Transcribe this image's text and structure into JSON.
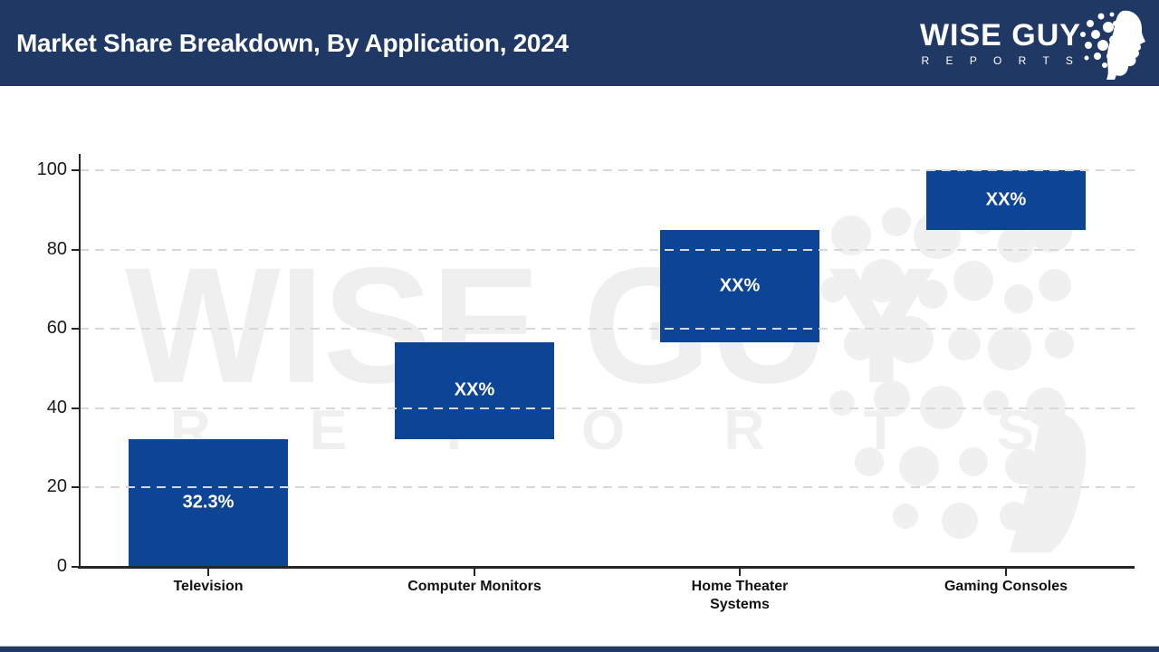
{
  "header": {
    "title": "Market Share Breakdown, By Application, 2024",
    "bg_color": "#1f3864"
  },
  "logo": {
    "name_line": "WISE GUY",
    "reports_line": "R E P O R T S"
  },
  "watermark": {
    "name_line": "WISE GUY",
    "reports_line": "R E P O R T S"
  },
  "footer": {
    "bg_color": "#1f3864"
  },
  "chart_data": {
    "type": "bar",
    "variant": "waterfall",
    "title": "Market Share Breakdown, By Application, 2024",
    "xlabel": "",
    "ylabel": "",
    "ylim": [
      0,
      100
    ],
    "yticks": [
      0,
      20,
      40,
      60,
      80,
      100
    ],
    "grid": "horizontal-dashed",
    "legend": "none",
    "bar_color": "#0c4496",
    "bar_label_color": "#ffffff",
    "categories": [
      "Television",
      "Computer Monitors",
      "Home Theater Systems",
      "Gaming Consoles"
    ],
    "segments": [
      {
        "category": "Television",
        "start": 0,
        "end": 32.3,
        "value": 32.3,
        "label": "32.3%"
      },
      {
        "category": "Computer Monitors",
        "start": 32.3,
        "end": 56.6,
        "value": 24.3,
        "label": "XX%"
      },
      {
        "category": "Home Theater Systems",
        "start": 56.6,
        "end": 84.9,
        "value": 28.3,
        "label": "XX%"
      },
      {
        "category": "Gaming Consoles",
        "start": 84.9,
        "end": 100,
        "value": 15.1,
        "label": "XX%"
      }
    ]
  }
}
